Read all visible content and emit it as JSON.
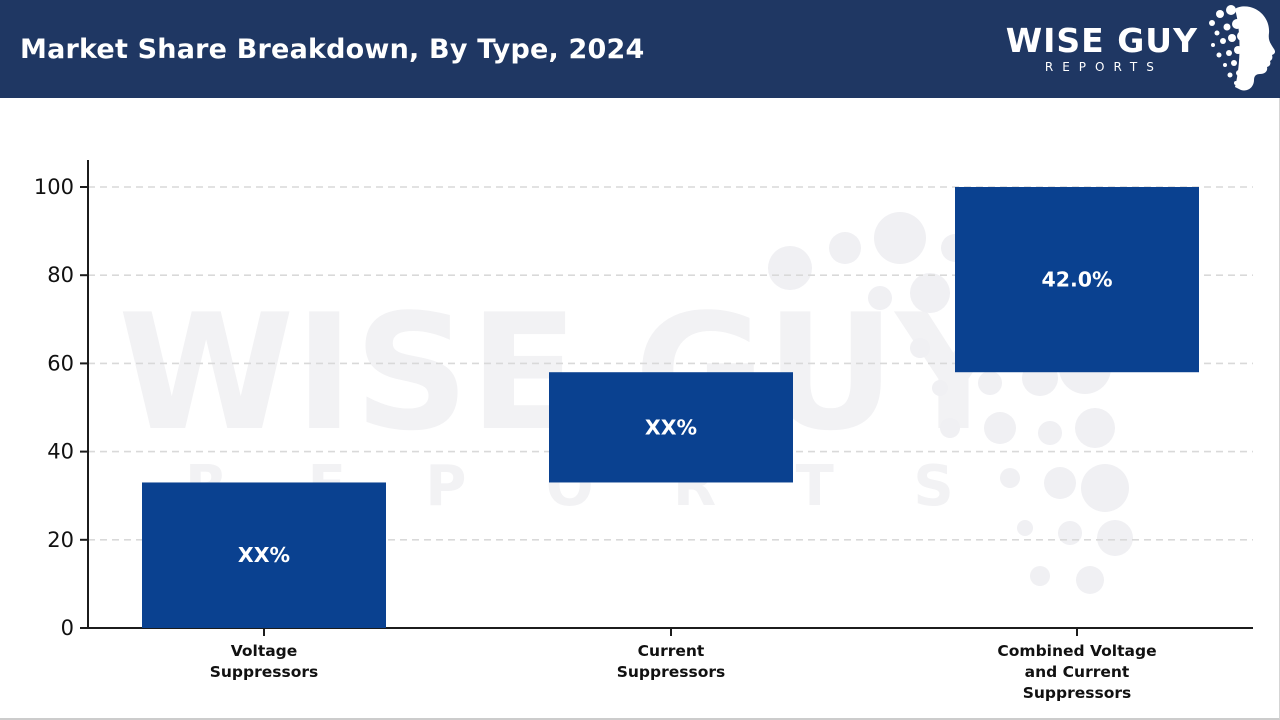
{
  "header": {
    "title": "Market Share Breakdown, By Type, 2024",
    "bg_color": "#1f3763",
    "logo": {
      "wordmark": "WISE GUY",
      "subtitle": "REPORTS"
    }
  },
  "watermark": {
    "line1": "WISE GUY",
    "line2": "R E P O R T S"
  },
  "chart_data": {
    "type": "bar",
    "variant": "waterfall",
    "title": "Market Share Breakdown, By Type, 2024",
    "categories": [
      "Voltage Suppressors",
      "Current Suppressors",
      "Combined Voltage and Current Suppressors"
    ],
    "category_lines": [
      [
        "Voltage",
        "Suppressors"
      ],
      [
        "Current",
        "Suppressors"
      ],
      [
        "Combined Voltage",
        "and Current",
        "Suppressors"
      ]
    ],
    "segments": [
      {
        "category": "Voltage Suppressors",
        "start": 0,
        "end": 33,
        "value": 33,
        "label": "XX%"
      },
      {
        "category": "Current Suppressors",
        "start": 33,
        "end": 58,
        "value": 25,
        "label": "XX%"
      },
      {
        "category": "Combined Voltage and Current Suppressors",
        "start": 58,
        "end": 100,
        "value": 42,
        "label": "42.0%"
      }
    ],
    "ylim": [
      0,
      100
    ],
    "yticks": [
      0,
      20,
      40,
      60,
      80,
      100
    ],
    "grid": {
      "axis": "y",
      "style": "dashed",
      "color": "#d9d9d9"
    },
    "bar_color": "#0a4190",
    "bar_label_color": "#ffffff",
    "axis_color": "#1c1c1c",
    "tick_label_color": "#111111",
    "category_label_color": "#111111"
  }
}
